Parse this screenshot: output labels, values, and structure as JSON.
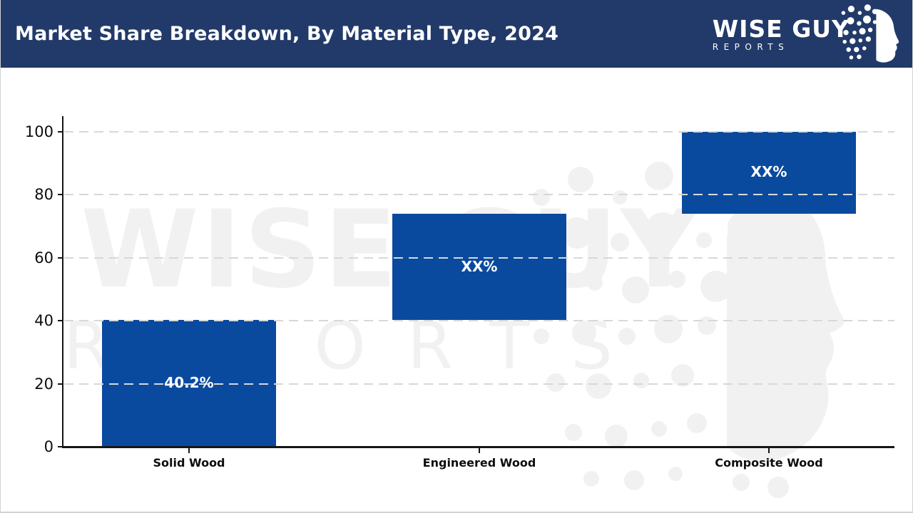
{
  "header": {
    "title": "Market Share Breakdown, By Material Type, 2024",
    "bg_color": "#213A69",
    "logo": {
      "line1": "WISE GUY",
      "line2": "REPORTS"
    }
  },
  "watermark": {
    "line1": "WISE GUY",
    "line2": "REPORTS"
  },
  "chart_data": {
    "type": "bar",
    "subtype": "waterfall",
    "title": "Market Share Breakdown, By Material Type, 2024",
    "categories": [
      "Solid Wood",
      "Engineered Wood",
      "Composite Wood"
    ],
    "segments": [
      {
        "category": "Solid Wood",
        "label": "40.2%",
        "start": 0,
        "end": 40.2
      },
      {
        "category": "Engineered Wood",
        "label": "XX%",
        "start": 40.2,
        "end": 74
      },
      {
        "category": "Composite Wood",
        "label": "XX%",
        "start": 74,
        "end": 100
      }
    ],
    "xlabel": "",
    "ylabel": "",
    "ylim": [
      0,
      100
    ],
    "yticks": [
      0,
      20,
      40,
      60,
      80,
      100
    ],
    "grid": "horizontal-dashed-over-bars",
    "legend": "none",
    "bar_color": "#0A4A9E",
    "bar_label_color": "#ffffff",
    "axis_color": "#161616",
    "gridline_color": "#d8d8d8"
  }
}
